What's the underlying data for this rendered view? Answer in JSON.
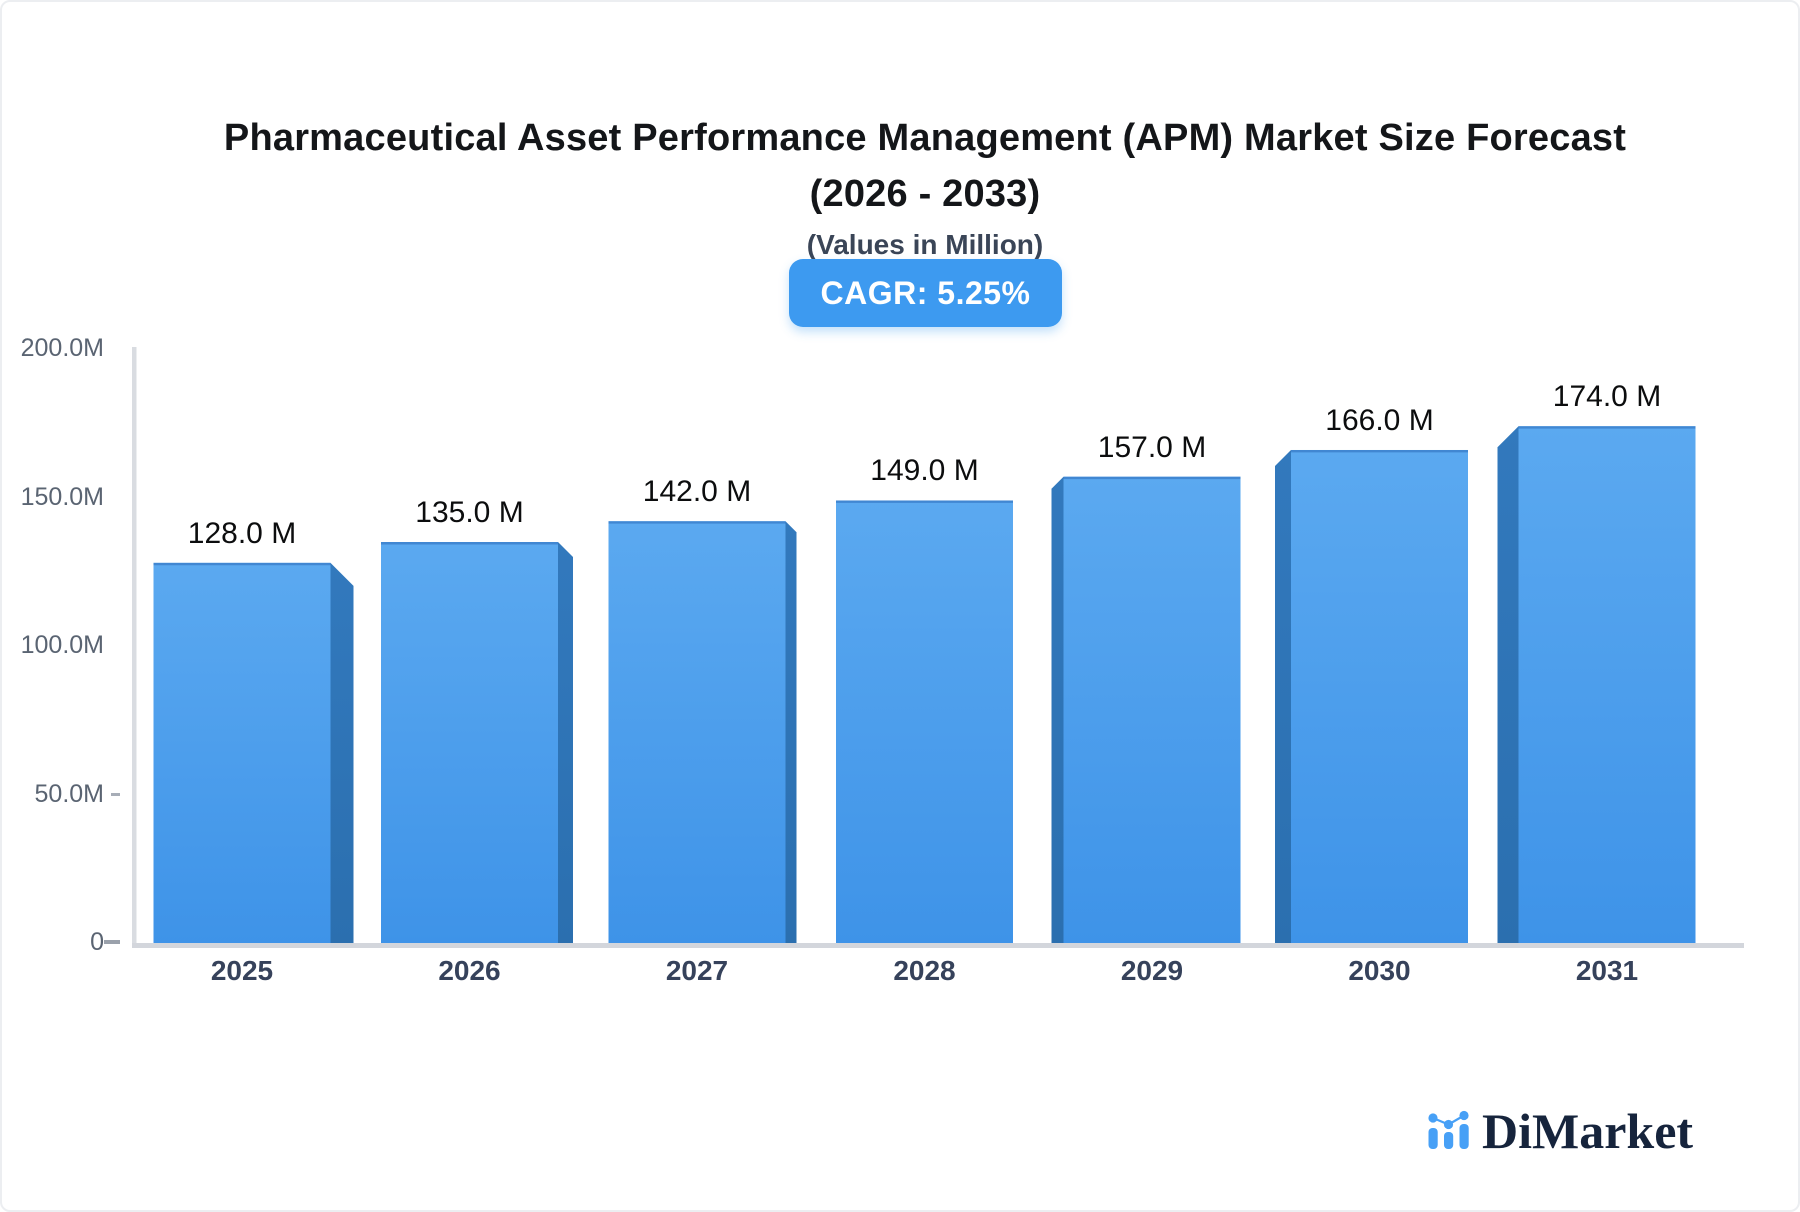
{
  "header": {
    "title_line1": "Pharmaceutical Asset Performance Management (APM) Market Size Forecast",
    "title_line2": "(2026 - 2033)",
    "subtitle": "(Values in Million)",
    "cagr_badge": "CAGR: 5.25%"
  },
  "chart_data": {
    "type": "bar",
    "title": "Pharmaceutical Asset Performance Management (APM) Market Size Forecast (2026 - 2033)",
    "subtitle": "(Values in Million)",
    "cagr_pct": 5.25,
    "categories": [
      "2025",
      "2026",
      "2027",
      "2028",
      "2029",
      "2030",
      "2031"
    ],
    "values": [
      128.0,
      135.0,
      142.0,
      149.0,
      157.0,
      166.0,
      174.0
    ],
    "value_labels": [
      "128.0 M",
      "135.0 M",
      "142.0 M",
      "149.0 M",
      "157.0 M",
      "166.0 M",
      "174.0 M"
    ],
    "unit": "Million",
    "xlabel": "",
    "ylabel": "",
    "ylim": [
      0,
      200
    ],
    "y_ticks": [
      {
        "label": "200.0M",
        "value": 200
      },
      {
        "label": "150.0M",
        "value": 150
      },
      {
        "label": "100.0M",
        "value": 100
      },
      {
        "label": "50.0M",
        "value": 50
      },
      {
        "label": "0",
        "value": 0
      }
    ],
    "grid": false,
    "legend": false,
    "bar_face_color_top": "#5BA9F0",
    "bar_face_color_bottom": "#3E93E8",
    "bar_side_color_top": "#3279BD",
    "bar_side_color_bottom": "#2B6FAF",
    "bar_top_edge_color": "#4187D2",
    "axis_color": "#D9DCE1",
    "tick_color": "#9AA1AB"
  },
  "branding": {
    "logo_text": "DiMarket",
    "logo_icon": "bar-chart-logo-icon",
    "logo_color": "#47A0F6",
    "logo_text_color": "#16243C"
  }
}
